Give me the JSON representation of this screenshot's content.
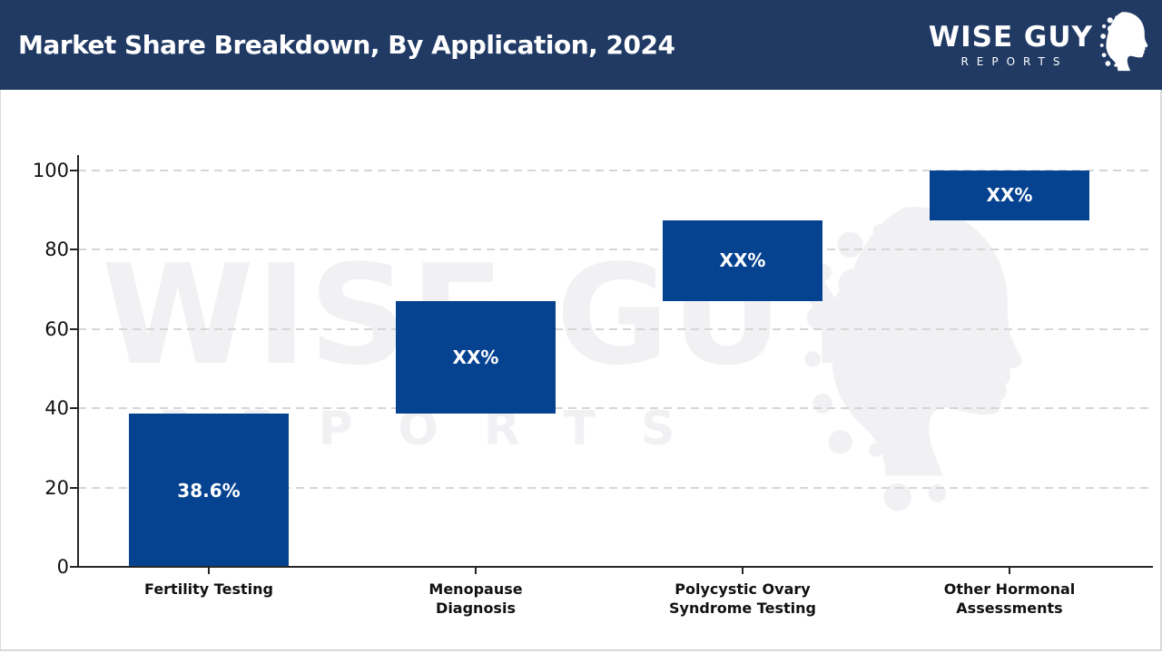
{
  "header": {
    "title": "Market Share Breakdown, By Application, 2024",
    "brand": {
      "name_top": "WISE GUY",
      "name_bottom": "REPORTS"
    }
  },
  "watermark": {
    "line1": "WISE GUY",
    "line2": "REPORTS"
  },
  "chart_data": {
    "type": "bar",
    "subtype": "waterfall",
    "title": "Market Share Breakdown, By Application, 2024",
    "categories": [
      "Fertility Testing",
      "Menopause Diagnosis",
      "Polycystic Ovary Syndrome Testing",
      "Other Hormonal Assessments"
    ],
    "category_lines": [
      [
        "Fertility Testing"
      ],
      [
        "Menopause",
        "Diagnosis"
      ],
      [
        "Polycystic Ovary",
        "Syndrome Testing"
      ],
      [
        "Other Hormonal",
        "Assessments"
      ]
    ],
    "segments": [
      {
        "category": "Fertility Testing",
        "start": 0,
        "end": 38.6,
        "label": "38.6%"
      },
      {
        "category": "Menopause Diagnosis",
        "start": 38.6,
        "end": 67,
        "label": "XX%"
      },
      {
        "category": "Polycystic Ovary Syndrome Testing",
        "start": 67,
        "end": 87.3,
        "label": "XX%"
      },
      {
        "category": "Other Hormonal Assessments",
        "start": 87.3,
        "end": 100,
        "label": "XX%"
      }
    ],
    "yticks": [
      0,
      20,
      40,
      60,
      80,
      100
    ],
    "ylim": [
      0,
      107
    ],
    "xlabel": "",
    "ylabel": "",
    "grid": "horizontal-dashed",
    "legend": "none",
    "bar_color": "#05428f",
    "bar_label_color": "#ffffff"
  },
  "colors": {
    "header_bg": "#213a64",
    "header_text": "#ffffff",
    "bar": "#05428f",
    "axis": "#262626",
    "grid": "#d6d6d6",
    "watermark": "#f1f1f4",
    "background": "#ffffff"
  }
}
